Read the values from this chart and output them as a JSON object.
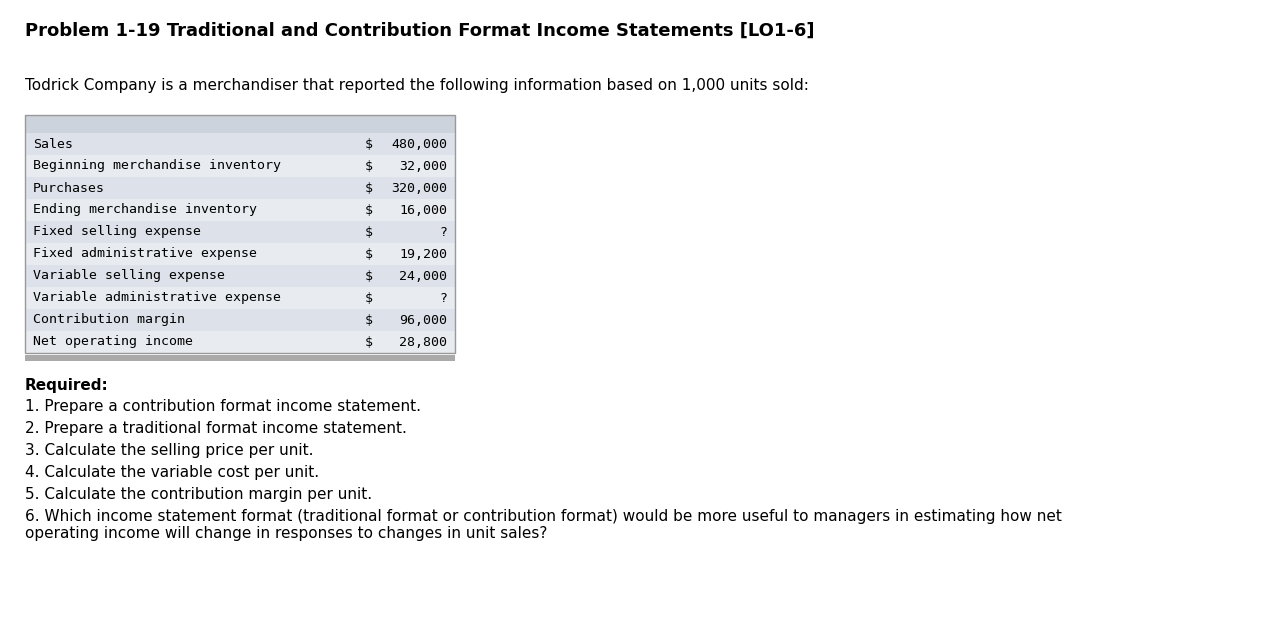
{
  "title": "Problem 1-19 Traditional and Contribution Format Income Statements [LO1-6]",
  "intro": "Todrick Company is a merchandiser that reported the following information based on 1,000 units sold:",
  "table_rows": [
    [
      "Sales",
      "$",
      "480,000"
    ],
    [
      "Beginning merchandise inventory",
      "$",
      "32,000"
    ],
    [
      "Purchases",
      "$",
      "320,000"
    ],
    [
      "Ending merchandise inventory",
      "$",
      "16,000"
    ],
    [
      "Fixed selling expense",
      "$",
      "?"
    ],
    [
      "Fixed administrative expense",
      "$",
      "19,200"
    ],
    [
      "Variable selling expense",
      "$",
      "24,000"
    ],
    [
      "Variable administrative expense",
      "$",
      "?"
    ],
    [
      "Contribution margin",
      "$",
      "96,000"
    ],
    [
      "Net operating income",
      "$",
      "28,800"
    ]
  ],
  "table_header_color": "#cdd3dc",
  "table_row_color_odd": "#dde2ea",
  "table_row_color_even": "#e8ecf0",
  "table_border_color": "#999999",
  "table_bottom_bar_color": "#aaaaaa",
  "required_label": "Required:",
  "required_items": [
    "1. Prepare a contribution format income statement.",
    "2. Prepare a traditional format income statement.",
    "3. Calculate the selling price per unit.",
    "4. Calculate the variable cost per unit.",
    "5. Calculate the contribution margin per unit.",
    "6. Which income statement format (traditional format or contribution format) would be more useful to managers in estimating how net\noperating income will change in responses to changes in unit sales?"
  ],
  "bg_color": "#ffffff",
  "title_fontsize": 13,
  "body_fontsize": 11,
  "table_fontsize": 9.5,
  "required_fontsize": 11
}
